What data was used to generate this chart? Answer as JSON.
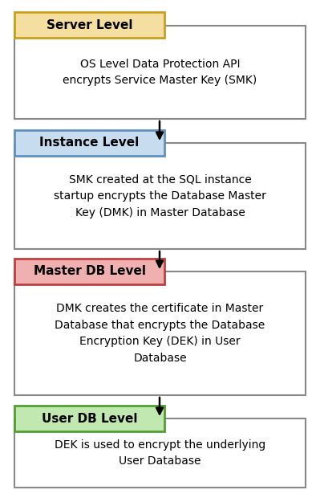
{
  "background_color": "#ffffff",
  "boxes": [
    {
      "label": "Server Level",
      "label_bg": "#F5DFA0",
      "label_border": "#C8A020",
      "content": "OS Level Data Protection API\nencrypts Service Master Key (SMK)",
      "content_border": "#888888",
      "content_facecolor": "#ffffff"
    },
    {
      "label": "Instance Level",
      "label_bg": "#C8DCF0",
      "label_border": "#6090C0",
      "content": "SMK created at the SQL instance\nstartup encrypts the Database Master\nKey (DMK) in Master Database",
      "content_border": "#888888",
      "content_facecolor": "#ffffff"
    },
    {
      "label": "Master DB Level",
      "label_bg": "#F0B0B0",
      "label_border": "#C04040",
      "content": "DMK creates the certificate in Master\nDatabase that encrypts the Database\nEncryption Key (DEK) in User\nDatabase",
      "content_border": "#888888",
      "content_facecolor": "#ffffff"
    },
    {
      "label": "User DB Level",
      "label_bg": "#C0E8B0",
      "label_border": "#50A030",
      "content": "DEK is used to encrypt the underlying\nUser Database",
      "content_border": "#888888",
      "content_facecolor": "#ffffff"
    }
  ],
  "arrow_color": "#000000",
  "label_fontsize": 11,
  "content_fontsize": 10
}
